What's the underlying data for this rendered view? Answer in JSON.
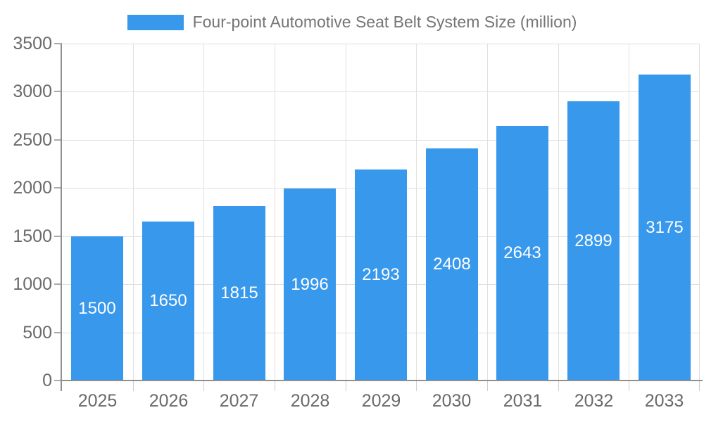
{
  "legend": {
    "label": "Four-point Automotive Seat Belt System Size (million)"
  },
  "chart_data": {
    "type": "bar",
    "title": "Four-point Automotive Seat Belt System Size (million)",
    "categories": [
      "2025",
      "2026",
      "2027",
      "2028",
      "2029",
      "2030",
      "2031",
      "2032",
      "2033"
    ],
    "values": [
      1500,
      1650,
      1815,
      1996,
      2193,
      2408,
      2643,
      2899,
      3175
    ],
    "series": [
      {
        "name": "Four-point Automotive Seat Belt System Size (million)",
        "values": [
          1500,
          1650,
          1815,
          1996,
          2193,
          2408,
          2643,
          2899,
          3175
        ]
      }
    ],
    "xlabel": "",
    "ylabel": "",
    "ylim": [
      0,
      3500
    ],
    "yticks": [
      0,
      500,
      1000,
      1500,
      2000,
      2500,
      3000,
      3500
    ],
    "grid": true,
    "legend_position": "top",
    "value_labels_position": "inside-center"
  },
  "colors": {
    "bar": "#3898EC",
    "value_label": "#FFFFFF",
    "legend_text": "#757575",
    "axis_label": "#6A6A6A",
    "grid_line": "#E0E0E0",
    "axis_line": "#8F8F8F",
    "y_tick": "#AAAAAA",
    "x_tick": "#CFCFCF",
    "background": "#FFFFFF"
  }
}
